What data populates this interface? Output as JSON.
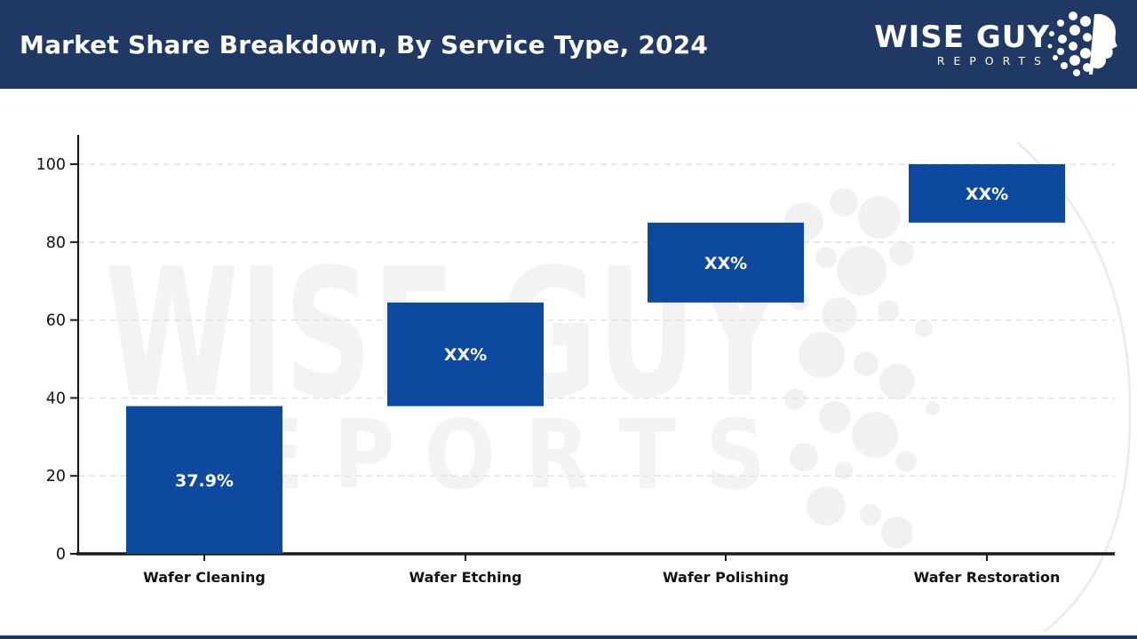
{
  "header": {
    "title": "Market Share Breakdown, By Service Type, 2024",
    "bg_color": "#203864",
    "logo": {
      "line1": "WISE GUY",
      "line2": "REPORTS"
    }
  },
  "watermark": {
    "line1": "WISE GUY",
    "line2": "REPORTS"
  },
  "footer": {
    "bar_color": "#203864"
  },
  "chart_data": {
    "type": "bar",
    "variant": "waterfall",
    "title": "Market Share Breakdown, By Service Type, 2024",
    "categories": [
      "Wafer Cleaning",
      "Wafer Etching",
      "Wafer Polishing",
      "Wafer Restoration"
    ],
    "segments": [
      {
        "category": "Wafer Cleaning",
        "start": 0,
        "end": 37.9,
        "label": "37.9%"
      },
      {
        "category": "Wafer Etching",
        "start": 37.9,
        "end": 64.5,
        "label": "XX%"
      },
      {
        "category": "Wafer Polishing",
        "start": 64.5,
        "end": 85.0,
        "label": "XX%"
      },
      {
        "category": "Wafer Restoration",
        "start": 85.0,
        "end": 100.0,
        "label": "XX%"
      }
    ],
    "xlabel": "",
    "ylabel": "",
    "ylim": [
      0,
      100
    ],
    "yticks": [
      0,
      20,
      40,
      60,
      80,
      100
    ],
    "grid": "horizontal-dashed",
    "legend": null,
    "bar_color": "#0d4a9f",
    "bar_label_color": "#ffffff",
    "axis_color": "#1a1a1a",
    "gridline_color": "#e2e2e2",
    "tick_label_color": "#111111"
  }
}
